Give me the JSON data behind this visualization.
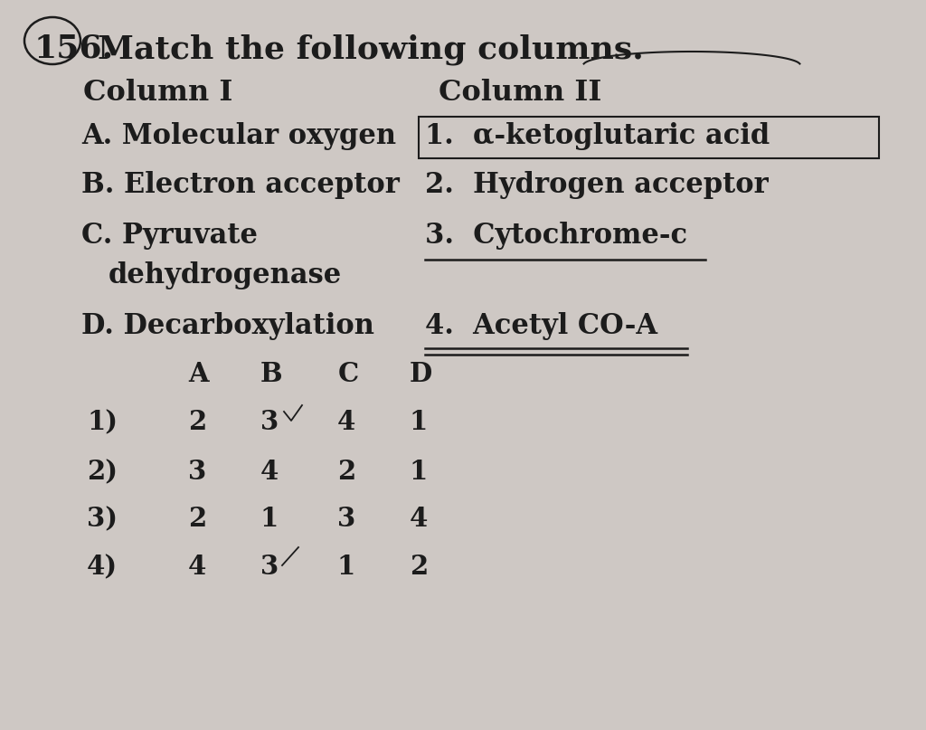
{
  "background_color": "#cec8c4",
  "question_number": "156",
  "question_text": "Match the following columns.",
  "col1_header": "Column I",
  "col2_header": "Column II",
  "col1_A": "A. Molecular oxygen",
  "col1_B": "B. Electron acceptor",
  "col1_C1": "C. Pyruvate",
  "col1_C2": "    dehydrogenase",
  "col1_D": "D. Decarboxylation",
  "col2_1": "1.  α-ketoglutaric acid",
  "col2_2": "2.  Hydrogen acceptor",
  "col2_3": "3.  Cytochrome-c",
  "col2_4": "4.  Acetyl CO-A",
  "table_header": [
    "A",
    "B",
    "C",
    "D"
  ],
  "table_rows": [
    [
      "1)",
      "2",
      "3",
      "4",
      "1"
    ],
    [
      "2)",
      "3",
      "4",
      "2",
      "1"
    ],
    [
      "3)",
      "2",
      "1",
      "3",
      "4"
    ],
    [
      "4)",
      "4",
      "3",
      "1",
      "2"
    ]
  ],
  "text_color": "#1c1c1c",
  "font_size_title": 26,
  "font_size_header": 23,
  "font_size_body": 22,
  "font_size_table": 21
}
